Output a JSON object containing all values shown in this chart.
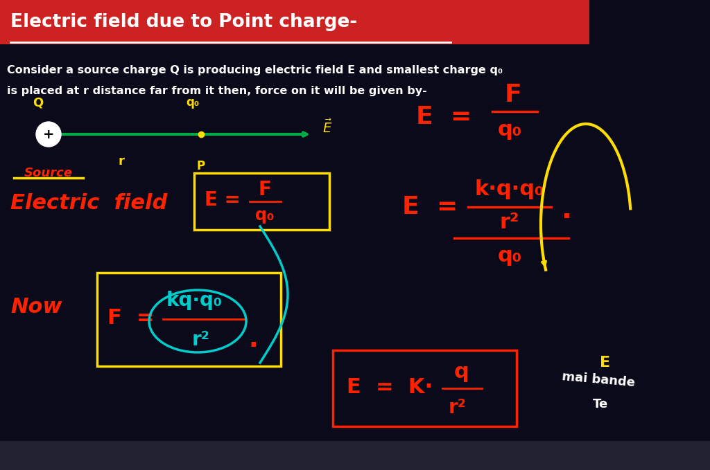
{
  "bg_color": "#0a0a1a",
  "title_bg": "#cc2222",
  "title_text": "Electric field due to Point charge-",
  "subtitle_line1": "Consider a source charge Q is producing electric field E and smallest charge q₀",
  "subtitle_line2": "is placed at r distance far from it then, force on it will be given by-",
  "red_color": "#ff2200",
  "yellow_color": "#ffdd00",
  "cyan_color": "#00cccc",
  "white_color": "#ffffff",
  "green_color": "#00aa44",
  "dark_bg": "#222233"
}
